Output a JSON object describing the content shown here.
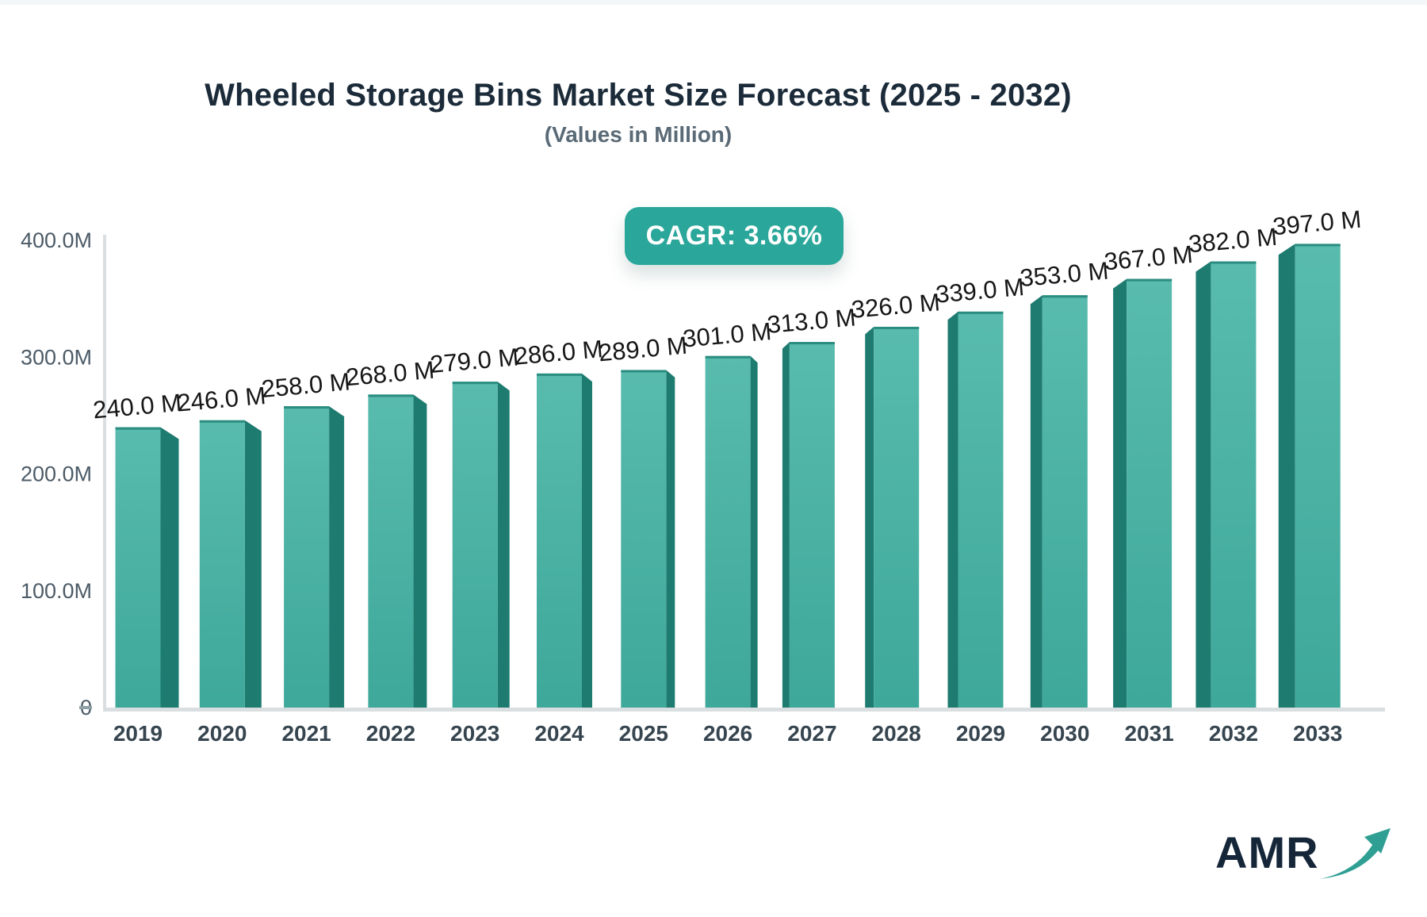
{
  "header": {
    "title": "Wheeled Storage Bins Market Size Forecast (2025 - 2032)",
    "subtitle": "(Values in Million)"
  },
  "badge": {
    "label": "CAGR: 3.66%"
  },
  "logo": {
    "text": "AMR",
    "arrow_icon": "growth-arrow-icon",
    "arrow_color": "#2f9f93",
    "text_color": "#152639"
  },
  "chart_data": {
    "type": "bar",
    "title": "Wheeled Storage Bins Market Size Forecast (2025 - 2032)",
    "subtitle": "(Values in Million)",
    "xlabel": "",
    "ylabel": "",
    "unit": "Million",
    "categories": [
      "2019",
      "2020",
      "2021",
      "2022",
      "2023",
      "2024",
      "2025",
      "2026",
      "2027",
      "2028",
      "2029",
      "2030",
      "2031",
      "2032",
      "2033"
    ],
    "values": [
      240.0,
      246.0,
      258.0,
      268.0,
      279.0,
      286.0,
      289.0,
      301.0,
      313.0,
      326.0,
      339.0,
      353.0,
      367.0,
      382.0,
      397.0
    ],
    "labels": [
      "240.0 M",
      "246.0 M",
      "258.0 M",
      "268.0 M",
      "279.0 M",
      "286.0 M",
      "289.0 M",
      "301.0 M",
      "313.0 M",
      "326.0 M",
      "339.0 M",
      "353.0 M",
      "367.0 M",
      "382.0 M",
      "397.0 M"
    ],
    "y_ticks": [
      {
        "label": "0",
        "value": 0
      },
      {
        "label": "100.0M",
        "value": 100
      },
      {
        "label": "200.0M",
        "value": 200
      },
      {
        "label": "300.0M",
        "value": 300
      },
      {
        "label": "400.0M",
        "value": 400
      }
    ],
    "ylim": [
      0,
      400
    ],
    "grid": false,
    "legend": "none",
    "colors": {
      "bar_front_top": "#58bbad",
      "bar_front_bottom": "#3ea89a",
      "bar_side": "#1e7b70",
      "bar_top_edge": "#2b8c80",
      "axis_line": "#d9dee1",
      "axis_tick": "#8fa0a6",
      "y_tick_text": "#4c5b67",
      "x_tick_text": "#36454f",
      "data_label_text": "#161616"
    }
  }
}
